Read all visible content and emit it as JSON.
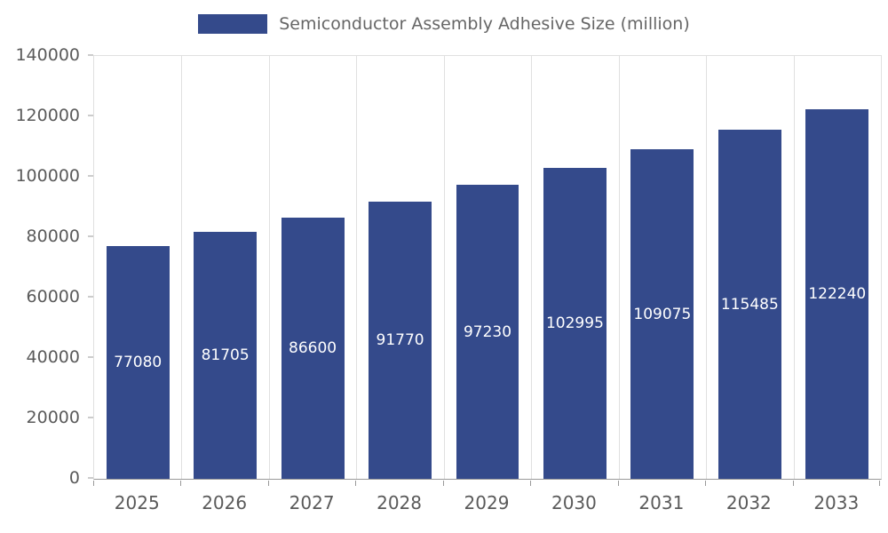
{
  "chart_data": {
    "type": "bar",
    "title": "Semiconductor Assembly Adhesive Size (million)",
    "legend_label": "Semiconductor Assembly Adhesive Size (million)",
    "categories": [
      "2025",
      "2026",
      "2027",
      "2028",
      "2029",
      "2030",
      "2031",
      "2032",
      "2033"
    ],
    "values": [
      77080,
      81705,
      86600,
      91770,
      97230,
      102995,
      109075,
      115485,
      122240
    ],
    "xlabel": "",
    "ylabel": "",
    "ylim": [
      0,
      140000
    ],
    "yticks": [
      0,
      20000,
      40000,
      60000,
      80000,
      100000,
      120000,
      140000
    ],
    "grid": "vertical-only",
    "legend_position": "top-center",
    "bar_color": "#344a8b",
    "value_label_color": "#ffffff",
    "grid_color": "#e0e0e0",
    "axis_line_color": "#999999",
    "axis_text_color": "#5a5a5a",
    "legend_text_color": "#666666",
    "background_color": "#ffffff"
  }
}
